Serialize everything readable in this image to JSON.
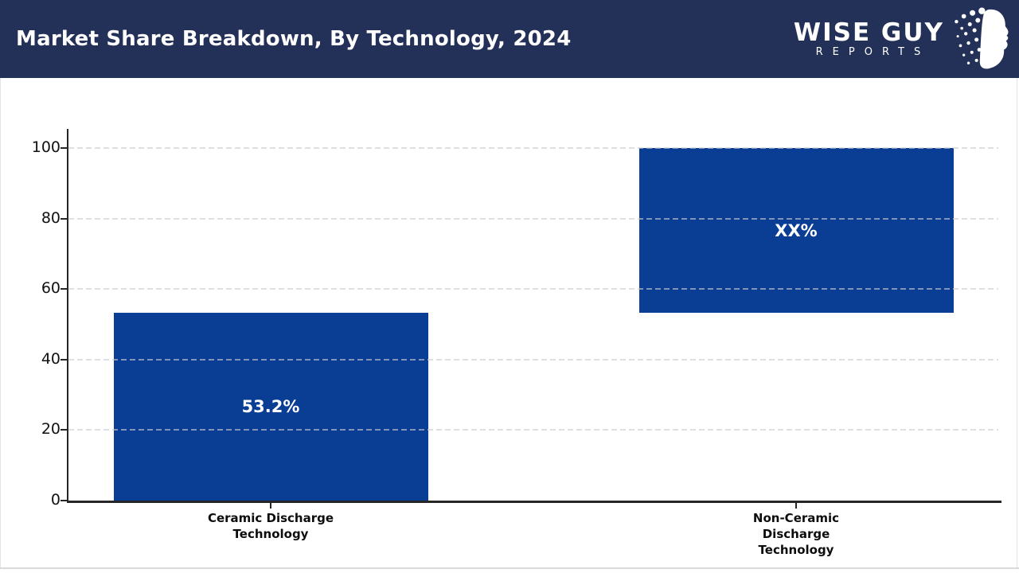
{
  "header": {
    "title": "Market Share Breakdown, By Technology, 2024",
    "brand": {
      "line1": "WISE GUY",
      "line2": "REPORTS"
    }
  },
  "watermark": {
    "line1": "WISE GU",
    "letters": [
      "R",
      "T",
      "S"
    ]
  },
  "chart_data": {
    "type": "bar",
    "title": "Market Share Breakdown, By Technology, 2024",
    "unit": "percent",
    "categories": [
      "Ceramic Discharge Technology",
      "Non-Ceramic Discharge Technology"
    ],
    "values": [
      53.2,
      46.8
    ],
    "bars": [
      {
        "category_lines": [
          "Ceramic Discharge",
          "Technology"
        ],
        "start": 0,
        "end": 53.2,
        "label": "53.2%"
      },
      {
        "category_lines": [
          "Non-Ceramic",
          "Discharge",
          "Technology"
        ],
        "start": 53.2,
        "end": 100,
        "label": "XX%"
      }
    ],
    "yticks": [
      0,
      20,
      40,
      60,
      80,
      100
    ],
    "ylim": [
      0,
      105
    ],
    "xlabel": "",
    "ylabel": "",
    "legend": "none",
    "grid": "horizontal-dashed",
    "bar_color": "#0a3d94",
    "annotation_note": "Second bar is stacked above the first, spanning 53.2 to 100 with masked label XX%"
  },
  "colors": {
    "header_bg": "#233158",
    "bar": "#0a3d94",
    "grid": "#d7d7d7",
    "axis": "#262626",
    "watermark": "#f2f2f4",
    "title_text": "#ffffff"
  }
}
